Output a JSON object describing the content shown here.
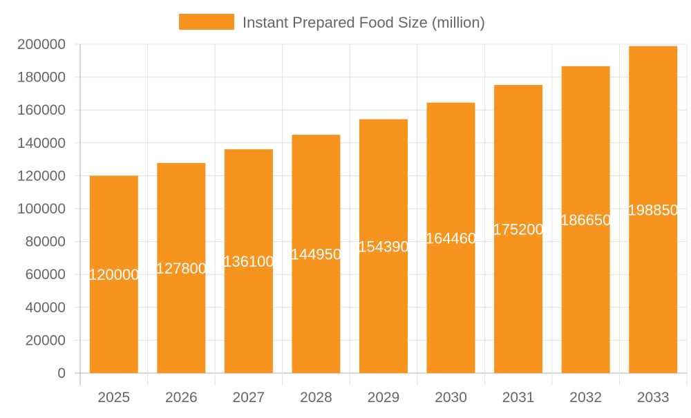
{
  "chart_data": {
    "type": "bar",
    "categories": [
      "2025",
      "2026",
      "2027",
      "2028",
      "2029",
      "2030",
      "2031",
      "2032",
      "2033"
    ],
    "series": [
      {
        "name": "Instant Prepared Food Size (million)",
        "values": [
          120000,
          127800,
          136100,
          144950,
          154390,
          164460,
          175200,
          186650,
          198850
        ],
        "color": "#f7941f"
      }
    ],
    "title": "",
    "xlabel": "",
    "ylabel": "",
    "ylim": [
      0,
      200000
    ],
    "yticks": [
      0,
      20000,
      40000,
      60000,
      80000,
      100000,
      120000,
      140000,
      160000,
      180000,
      200000
    ],
    "grid": true,
    "legend": "top-center",
    "data_labels": true,
    "colors": {
      "grid": "#e0e0e0",
      "axis": "#b0b0b0",
      "text": "#666666",
      "label": "#ffffff"
    }
  }
}
